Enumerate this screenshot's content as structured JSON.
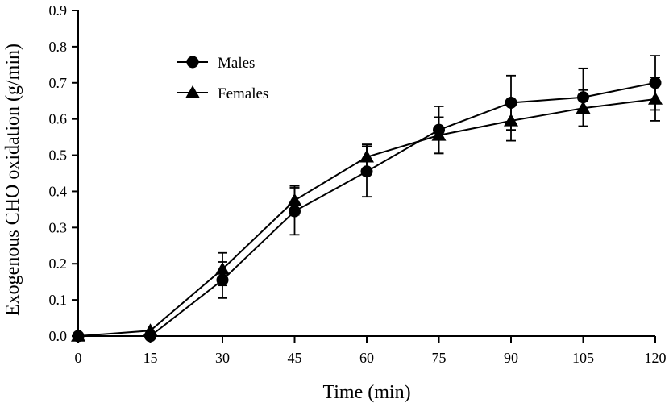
{
  "chart_data": {
    "type": "line",
    "title": "",
    "xlabel": "Time (min)",
    "ylabel": "Exogenous CHO oxidation (g/min)",
    "x": [
      0,
      15,
      30,
      45,
      60,
      75,
      90,
      105,
      120
    ],
    "xlim": [
      0,
      120
    ],
    "ylim": [
      0.0,
      0.9
    ],
    "x_ticks": [
      "0",
      "15",
      "30",
      "45",
      "60",
      "75",
      "90",
      "105",
      "120"
    ],
    "y_ticks": [
      "0.0",
      "0.1",
      "0.2",
      "0.3",
      "0.4",
      "0.5",
      "0.6",
      "0.7",
      "0.8",
      "0.9"
    ],
    "grid": false,
    "legend_position": "top-left",
    "series": [
      {
        "name": "Males",
        "marker": "circle",
        "color": "#000000",
        "values": [
          0.0,
          0.0,
          0.155,
          0.345,
          0.455,
          0.57,
          0.645,
          0.66,
          0.7
        ],
        "error": [
          0.0,
          0.0,
          0.05,
          0.065,
          0.07,
          0.065,
          0.075,
          0.08,
          0.075
        ]
      },
      {
        "name": "Females",
        "marker": "triangle",
        "color": "#000000",
        "values": [
          0.0,
          0.015,
          0.185,
          0.375,
          0.495,
          0.555,
          0.595,
          0.63,
          0.655
        ],
        "error": [
          0.0,
          0.0,
          0.045,
          0.04,
          0.035,
          0.05,
          0.055,
          0.05,
          0.06
        ]
      }
    ]
  }
}
